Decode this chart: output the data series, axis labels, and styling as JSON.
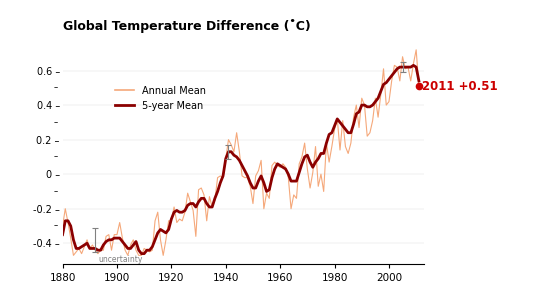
{
  "title": "Global Temperature Difference (˚C)",
  "title_fontsize": 9,
  "annotation_text": "2011 +0.51",
  "annotation_color": "#cc0000",
  "uncertainty_label": "uncertainty",
  "annual_color": "#f5a87a",
  "fiveyear_color": "#8b0000",
  "background_color": "#ffffff",
  "xlim": [
    1880,
    2013
  ],
  "ylim": [
    -0.52,
    0.8
  ],
  "yticks": [
    -0.4,
    -0.2,
    0.0,
    0.2,
    0.4,
    0.6
  ],
  "yticks_minor": [
    -0.3,
    -0.1,
    0.1,
    0.3,
    0.5
  ],
  "xticks": [
    1880,
    1900,
    1920,
    1940,
    1960,
    1980,
    2000
  ],
  "years": [
    1880,
    1881,
    1882,
    1883,
    1884,
    1885,
    1886,
    1887,
    1888,
    1889,
    1890,
    1891,
    1892,
    1893,
    1894,
    1895,
    1896,
    1897,
    1898,
    1899,
    1900,
    1901,
    1902,
    1903,
    1904,
    1905,
    1906,
    1907,
    1908,
    1909,
    1910,
    1911,
    1912,
    1913,
    1914,
    1915,
    1916,
    1917,
    1918,
    1919,
    1920,
    1921,
    1922,
    1923,
    1924,
    1925,
    1926,
    1927,
    1928,
    1929,
    1930,
    1931,
    1932,
    1933,
    1934,
    1935,
    1936,
    1937,
    1938,
    1939,
    1940,
    1941,
    1942,
    1943,
    1944,
    1945,
    1946,
    1947,
    1948,
    1949,
    1950,
    1951,
    1952,
    1953,
    1954,
    1955,
    1956,
    1957,
    1958,
    1959,
    1960,
    1961,
    1962,
    1963,
    1964,
    1965,
    1966,
    1967,
    1968,
    1969,
    1970,
    1971,
    1972,
    1973,
    1974,
    1975,
    1976,
    1977,
    1978,
    1979,
    1980,
    1981,
    1982,
    1983,
    1984,
    1985,
    1986,
    1987,
    1988,
    1989,
    1990,
    1991,
    1992,
    1993,
    1994,
    1995,
    1996,
    1997,
    1998,
    1999,
    2000,
    2001,
    2002,
    2003,
    2004,
    2005,
    2006,
    2007,
    2008,
    2009,
    2010,
    2011
  ],
  "annual": [
    -0.3,
    -0.2,
    -0.28,
    -0.37,
    -0.47,
    -0.45,
    -0.43,
    -0.46,
    -0.42,
    -0.38,
    -0.43,
    -0.41,
    -0.44,
    -0.46,
    -0.44,
    -0.44,
    -0.36,
    -0.35,
    -0.44,
    -0.35,
    -0.35,
    -0.28,
    -0.37,
    -0.44,
    -0.47,
    -0.41,
    -0.38,
    -0.44,
    -0.47,
    -0.47,
    -0.43,
    -0.44,
    -0.45,
    -0.44,
    -0.27,
    -0.22,
    -0.38,
    -0.47,
    -0.38,
    -0.27,
    -0.27,
    -0.19,
    -0.28,
    -0.26,
    -0.27,
    -0.22,
    -0.11,
    -0.16,
    -0.21,
    -0.36,
    -0.09,
    -0.08,
    -0.12,
    -0.27,
    -0.13,
    -0.19,
    -0.15,
    -0.02,
    -0.01,
    -0.02,
    0.09,
    0.2,
    0.17,
    0.13,
    0.24,
    0.13,
    -0.01,
    -0.02,
    -0.02,
    -0.07,
    -0.17,
    -0.01,
    0.02,
    0.08,
    -0.2,
    -0.11,
    -0.14,
    0.05,
    0.07,
    0.05,
    0.04,
    0.06,
    0.04,
    -0.02,
    -0.2,
    -0.12,
    -0.14,
    0.06,
    0.1,
    0.18,
    0.03,
    -0.08,
    0.01,
    0.16,
    -0.07,
    0.0,
    -0.1,
    0.18,
    0.07,
    0.16,
    0.26,
    0.32,
    0.14,
    0.31,
    0.16,
    0.12,
    0.18,
    0.33,
    0.4,
    0.27,
    0.44,
    0.4,
    0.22,
    0.24,
    0.31,
    0.44,
    0.33,
    0.46,
    0.61,
    0.4,
    0.42,
    0.54,
    0.63,
    0.62,
    0.54,
    0.68,
    0.61,
    0.62,
    0.54,
    0.64,
    0.72,
    0.51
  ],
  "fiveyear": [
    -0.35,
    -0.27,
    -0.27,
    -0.3,
    -0.38,
    -0.43,
    -0.43,
    -0.42,
    -0.41,
    -0.4,
    -0.43,
    -0.43,
    -0.43,
    -0.44,
    -0.44,
    -0.41,
    -0.39,
    -0.38,
    -0.38,
    -0.37,
    -0.37,
    -0.37,
    -0.39,
    -0.41,
    -0.43,
    -0.43,
    -0.41,
    -0.39,
    -0.44,
    -0.46,
    -0.46,
    -0.44,
    -0.44,
    -0.42,
    -0.38,
    -0.34,
    -0.32,
    -0.33,
    -0.34,
    -0.32,
    -0.26,
    -0.22,
    -0.21,
    -0.22,
    -0.22,
    -0.21,
    -0.18,
    -0.17,
    -0.17,
    -0.19,
    -0.16,
    -0.14,
    -0.14,
    -0.17,
    -0.19,
    -0.19,
    -0.14,
    -0.1,
    -0.05,
    -0.01,
    0.09,
    0.13,
    0.13,
    0.11,
    0.1,
    0.08,
    0.05,
    0.02,
    -0.01,
    -0.05,
    -0.08,
    -0.08,
    -0.04,
    -0.01,
    -0.05,
    -0.1,
    -0.09,
    -0.02,
    0.03,
    0.06,
    0.05,
    0.04,
    0.03,
    0.0,
    -0.04,
    -0.04,
    -0.04,
    0.01,
    0.06,
    0.1,
    0.11,
    0.07,
    0.04,
    0.07,
    0.09,
    0.12,
    0.12,
    0.18,
    0.23,
    0.24,
    0.28,
    0.32,
    0.3,
    0.28,
    0.26,
    0.24,
    0.24,
    0.29,
    0.35,
    0.36,
    0.4,
    0.4,
    0.39,
    0.39,
    0.4,
    0.42,
    0.44,
    0.48,
    0.52,
    0.53,
    0.55,
    0.57,
    0.59,
    0.61,
    0.62,
    0.62,
    0.62,
    0.62,
    0.62,
    0.63,
    0.62,
    0.54
  ],
  "uncertainty_year": 1892,
  "uncertainty_value": -0.38,
  "uncertainty_half": 0.07,
  "errbar_years": [
    1941,
    2005
  ],
  "errbar_values": [
    0.13,
    0.62
  ],
  "errbar_halfs": [
    0.04,
    0.03
  ],
  "dot_year": 2011,
  "dot_value": 0.51
}
